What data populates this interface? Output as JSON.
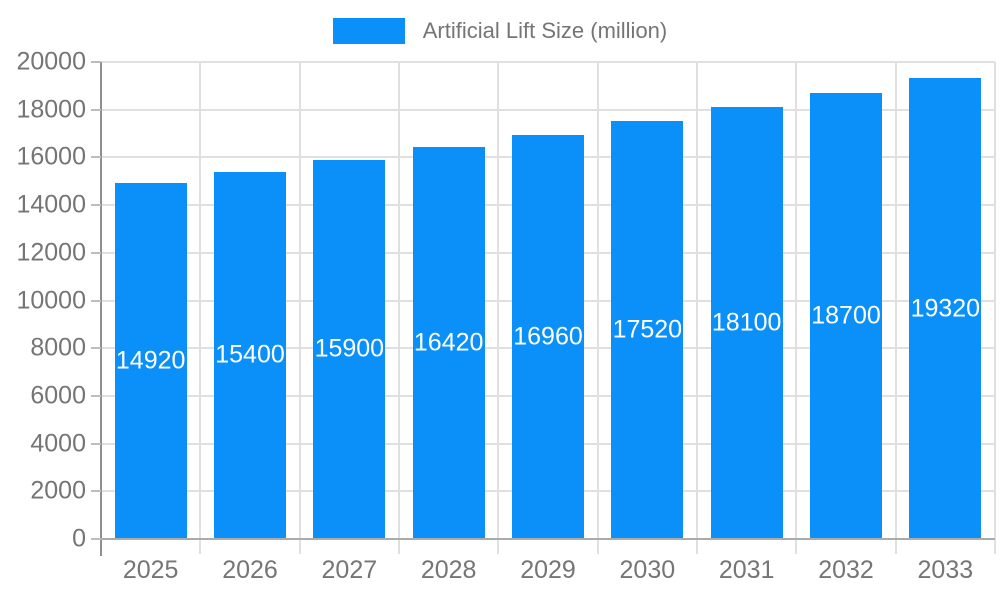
{
  "legend": {
    "label": "Artificial Lift Size (million)"
  },
  "colors": {
    "bar": "#0a90f8",
    "bar_label": "#ffffff",
    "axis_text": "#757575",
    "gridline": "#e0e0e0",
    "y_axis_line": "#8f8f8f",
    "x_axis_line": "#ababab"
  },
  "chart_data": {
    "type": "bar",
    "title": "Artificial Lift Size (million)",
    "series": [
      {
        "name": "Artificial Lift Size (million)",
        "values": [
          14920,
          15400,
          15900,
          16420,
          16960,
          17520,
          18100,
          18700,
          19320
        ]
      }
    ],
    "categories": [
      "2025",
      "2026",
      "2027",
      "2028",
      "2029",
      "2030",
      "2031",
      "2032",
      "2033"
    ],
    "xlabel": "",
    "ylabel": "",
    "ylim": [
      0,
      20000
    ],
    "ytick_step": 2000,
    "ytick_labels": [
      "0",
      "2000",
      "4000",
      "6000",
      "8000",
      "10000",
      "12000",
      "14000",
      "16000",
      "18000",
      "20000"
    ],
    "grid": true,
    "legend_position": "top",
    "bar_value_labels_visible": true,
    "bar_value_label_position": "middle"
  }
}
